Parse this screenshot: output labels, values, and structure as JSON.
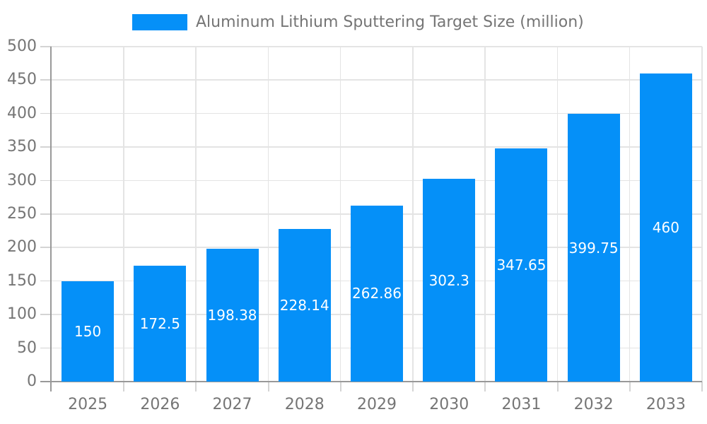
{
  "chart_data": {
    "type": "bar",
    "title": "Aluminum Lithium Sputtering Target Size (million)",
    "legend_position": "top",
    "categories": [
      "2025",
      "2026",
      "2027",
      "2028",
      "2029",
      "2030",
      "2031",
      "2032",
      "2033"
    ],
    "values": [
      150,
      172.5,
      198.38,
      228.14,
      262.86,
      302.3,
      347.65,
      399.75,
      460
    ],
    "value_labels": [
      "150",
      "172.5",
      "198.38",
      "228.14",
      "262.86",
      "302.3",
      "347.65",
      "399.75",
      "460"
    ],
    "xlabel": "",
    "ylabel": "",
    "ylim": [
      0,
      500
    ],
    "ytick_step": 50,
    "grid": true,
    "colors": {
      "bar": "#0590f8",
      "grid": "#e4e4e4",
      "axis": "#999999",
      "tick": "#d4d4d4",
      "axis_label": "#757575",
      "value_label": "#ffffff",
      "background": "#ffffff"
    }
  }
}
